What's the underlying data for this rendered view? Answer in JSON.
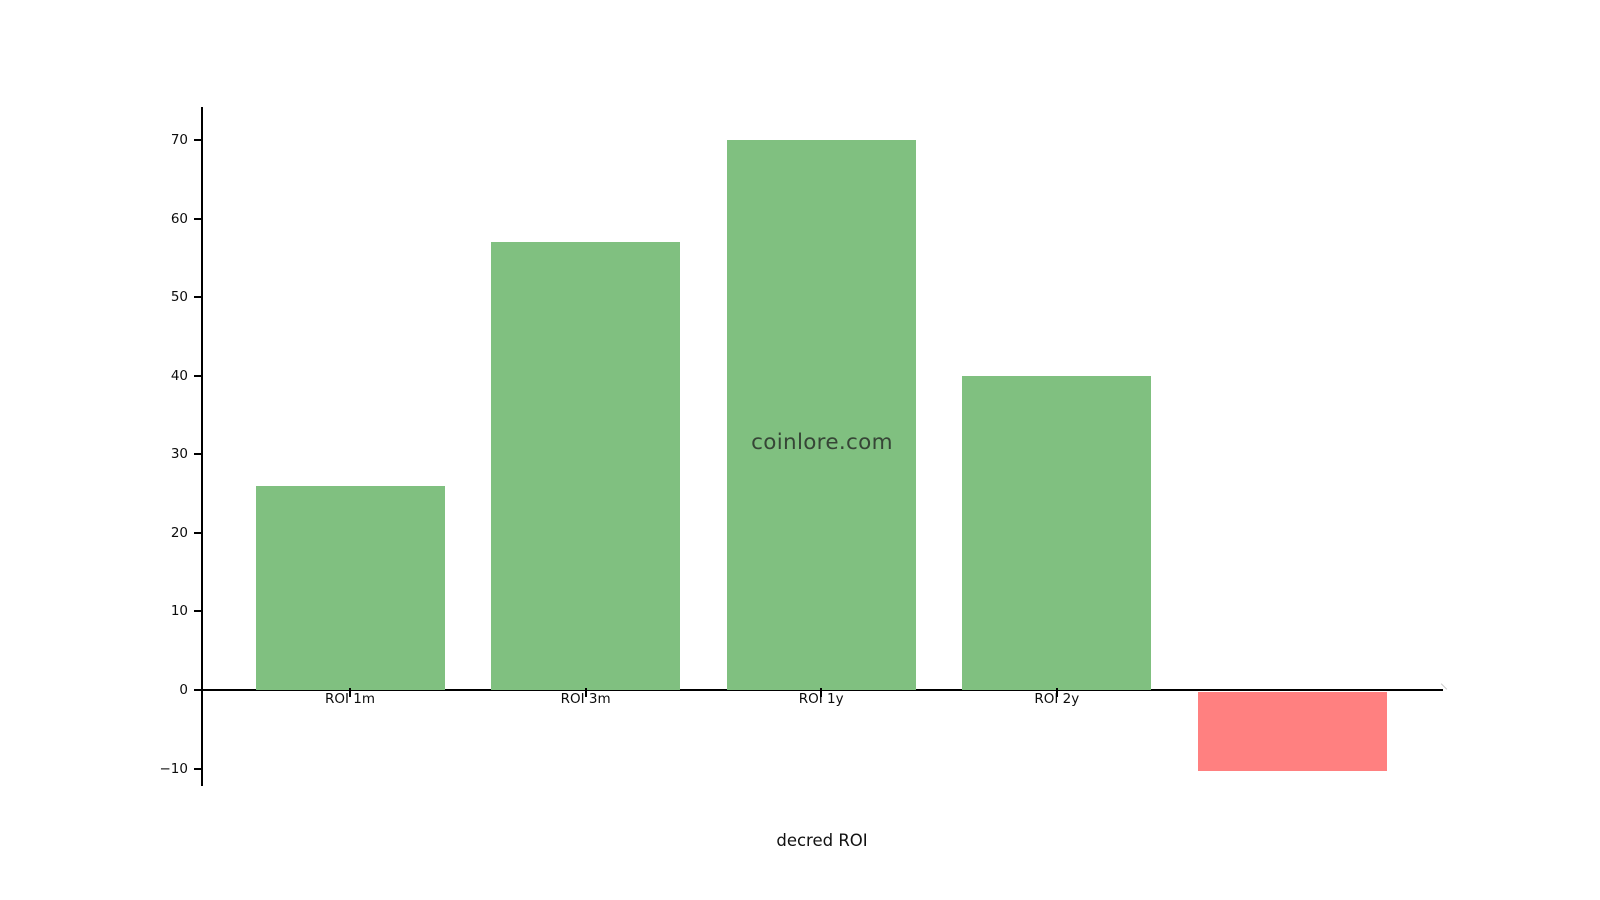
{
  "chart_data": {
    "type": "bar",
    "categories": [
      "ROI 1m",
      "ROI 3m",
      "ROI 1y",
      "ROI 2y",
      ""
    ],
    "values": [
      26,
      57,
      70,
      40,
      -10
    ],
    "title": "decred ROI",
    "xlabel": "",
    "ylabel": "",
    "ylim": [
      -10,
      70
    ],
    "yticks": [
      -10,
      0,
      10,
      20,
      30,
      40,
      50,
      60,
      70
    ],
    "grid": false,
    "legend_position": "none",
    "positive_color": "#80c080",
    "negative_color": "#ff8080",
    "axis_color": "#000000"
  },
  "watermark": "coinlore.com"
}
